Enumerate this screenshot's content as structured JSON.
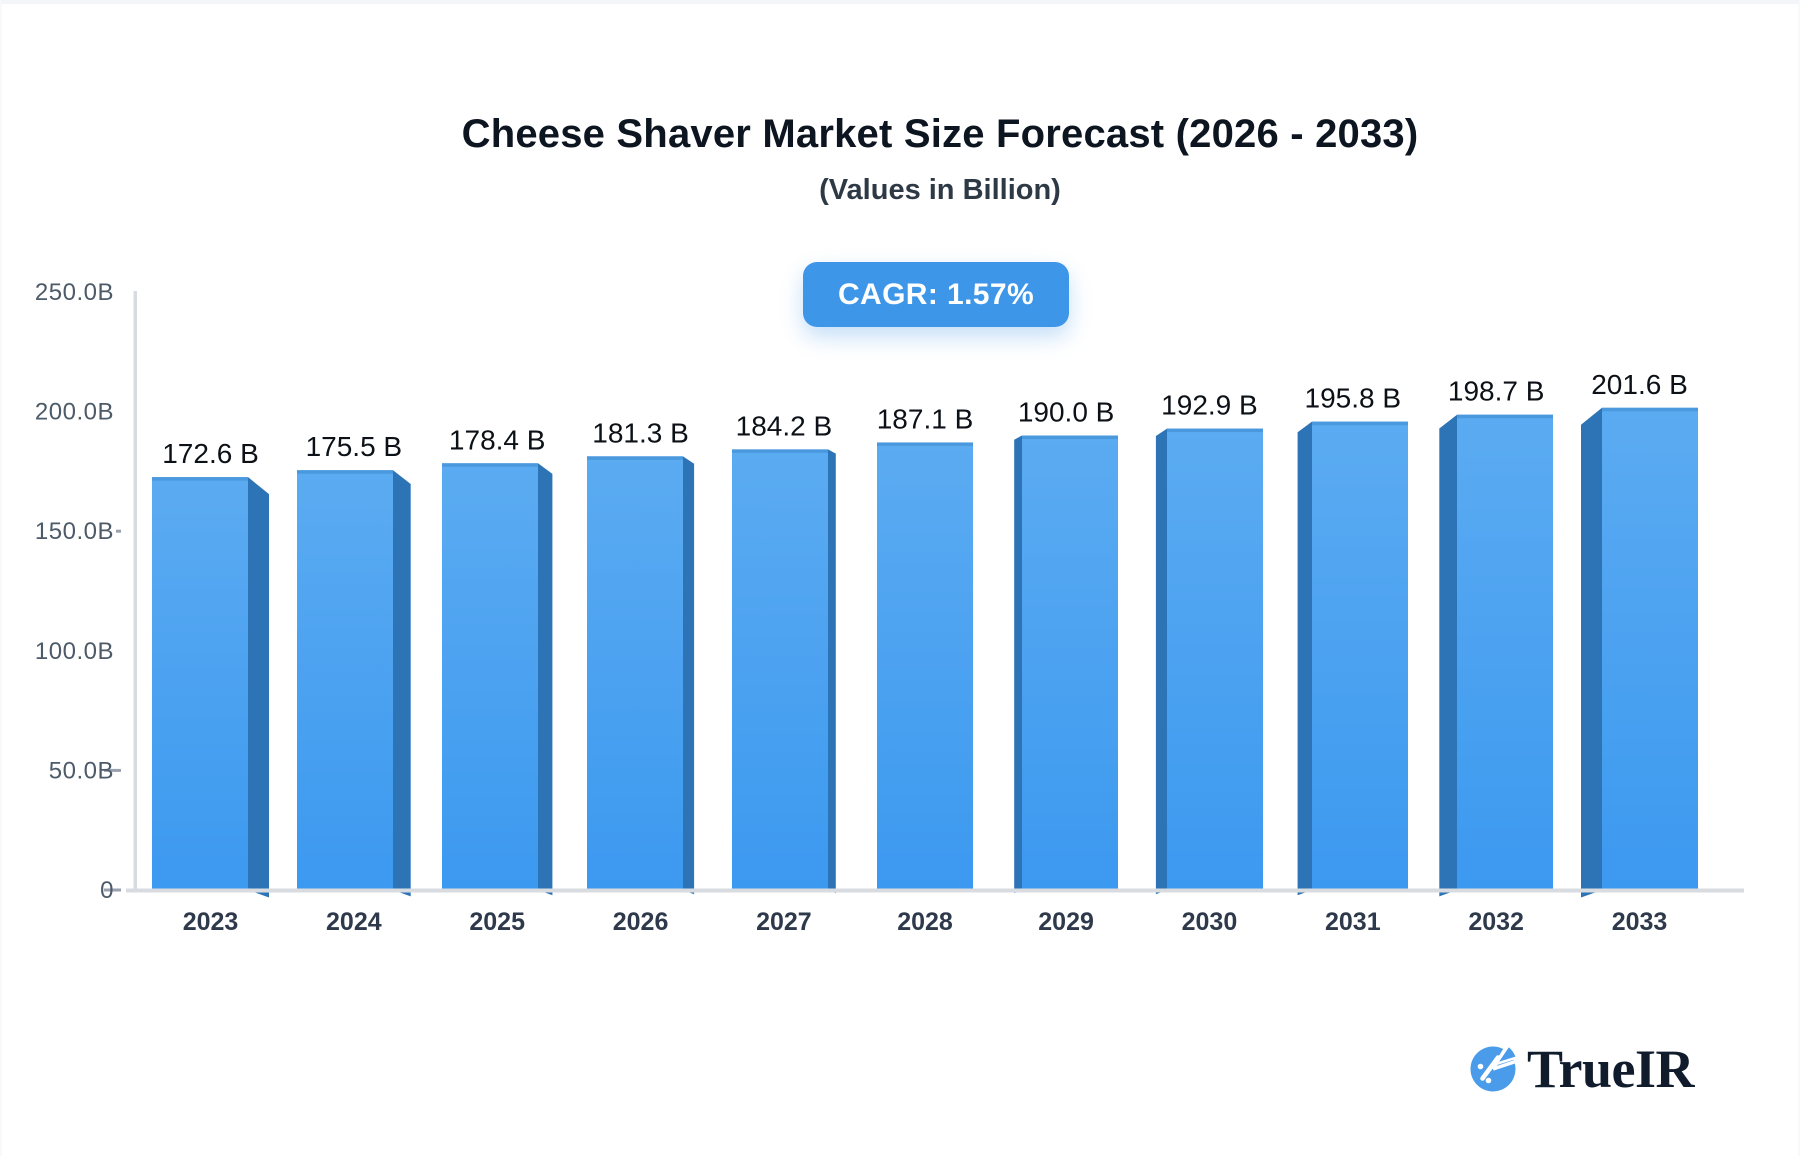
{
  "header": {
    "title": "Cheese Shaver Market Size Forecast (2026 - 2033)",
    "subtitle": "(Values in Billion)"
  },
  "badge": {
    "label": "CAGR: 1.57%",
    "background_color": "#3d96e8",
    "text_color": "#ffffff"
  },
  "chart_data": {
    "type": "bar",
    "title": "Cheese Shaver Market Size Forecast (2026 - 2033)",
    "subtitle": "(Values in Billion)",
    "xlabel": "",
    "ylabel": "",
    "categories": [
      "2023",
      "2024",
      "2025",
      "2026",
      "2027",
      "2028",
      "2029",
      "2030",
      "2031",
      "2032",
      "2033"
    ],
    "values": [
      172.6,
      175.5,
      178.4,
      181.3,
      184.2,
      187.1,
      190.0,
      192.9,
      195.8,
      198.7,
      201.6
    ],
    "value_labels": [
      "172.6 B",
      "175.5 B",
      "178.4 B",
      "181.3 B",
      "184.2 B",
      "187.1 B",
      "190.0 B",
      "192.9 B",
      "195.8 B",
      "198.7 B",
      "201.6 B"
    ],
    "ylim": [
      0,
      250
    ],
    "yticks": [
      {
        "label": "250.0B",
        "value": 250,
        "tick": "none"
      },
      {
        "label": "200.0B",
        "value": 200,
        "tick": "none"
      },
      {
        "label": "150.0B",
        "value": 150,
        "tick": "dot"
      },
      {
        "label": "100.0B",
        "value": 100,
        "tick": "none"
      },
      {
        "label": "50.0B",
        "value": 50,
        "tick": "dash"
      },
      {
        "label": "0",
        "value": 0,
        "tick": "dash"
      }
    ],
    "grid": false,
    "legend": false,
    "style": "3d-perspective-bars-centered-vanishing-point",
    "colors": {
      "bar_face_top": "#5babf1",
      "bar_face_bottom": "#3c99f0",
      "bar_side": "#2c74b6",
      "bar_top_edge": "#4a99de",
      "axis_line": "#d8dbe0",
      "tick_mark": "#98a1ad"
    }
  },
  "branding": {
    "name": "TrueIR",
    "icon": "pie-percent-icon",
    "icon_color": "#4a9ceb",
    "text_color": "#101b2c"
  }
}
